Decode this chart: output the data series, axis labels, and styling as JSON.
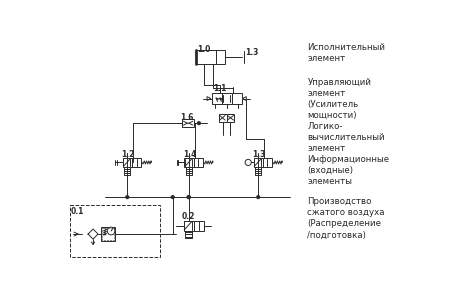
{
  "bg_color": "#ffffff",
  "line_color": "#2a2a2a",
  "labels": {
    "exec": "Исполнительный\nэлемент",
    "ctrl": "Управляющий\nэлемент\n(Усилитель\nмощности)\nЛогико-\nвычислительный\nэлемент",
    "info": "Информационные\n(входные)\nэлементы",
    "prod": "Производство\nсжатого воздуха\n(Распределение\n/подготовка)"
  },
  "comp_labels": [
    "1.0",
    "1.3",
    "1.1",
    "1.6",
    "1.2",
    "1.4",
    "1.3",
    "0.1",
    "0.2"
  ]
}
